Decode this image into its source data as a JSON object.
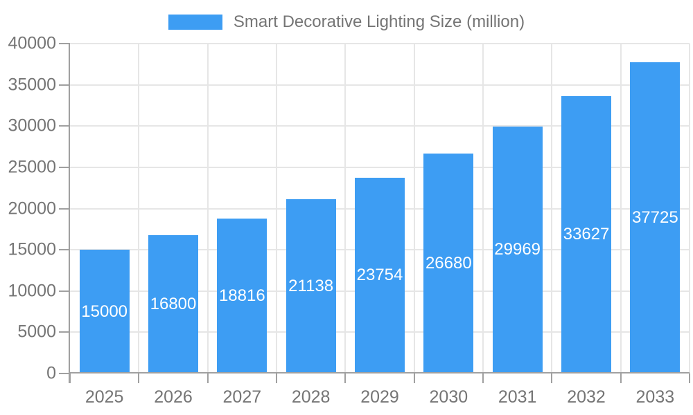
{
  "legend": {
    "label": "Smart Decorative Lighting Size (million)"
  },
  "chart_data": {
    "type": "bar",
    "title": "Smart Decorative Lighting Size (million)",
    "categories": [
      "2025",
      "2026",
      "2027",
      "2028",
      "2029",
      "2030",
      "2031",
      "2032",
      "2033"
    ],
    "values": [
      15000,
      16800,
      18816,
      21138,
      23754,
      26680,
      29969,
      33627,
      37725
    ],
    "xlabel": "",
    "ylabel": "",
    "ylim": [
      0,
      40000
    ],
    "yticks": [
      0,
      5000,
      10000,
      15000,
      20000,
      25000,
      30000,
      35000,
      40000
    ],
    "grid": true,
    "legend_position": "top-center",
    "colors": {
      "bar": "#3D9DF3",
      "value_label": "#FFFFFF",
      "axis_label": "#757575",
      "grid_line": "#E6E6E6",
      "axis_line": "#A0A0A0",
      "background": "#FFFFFF"
    }
  }
}
